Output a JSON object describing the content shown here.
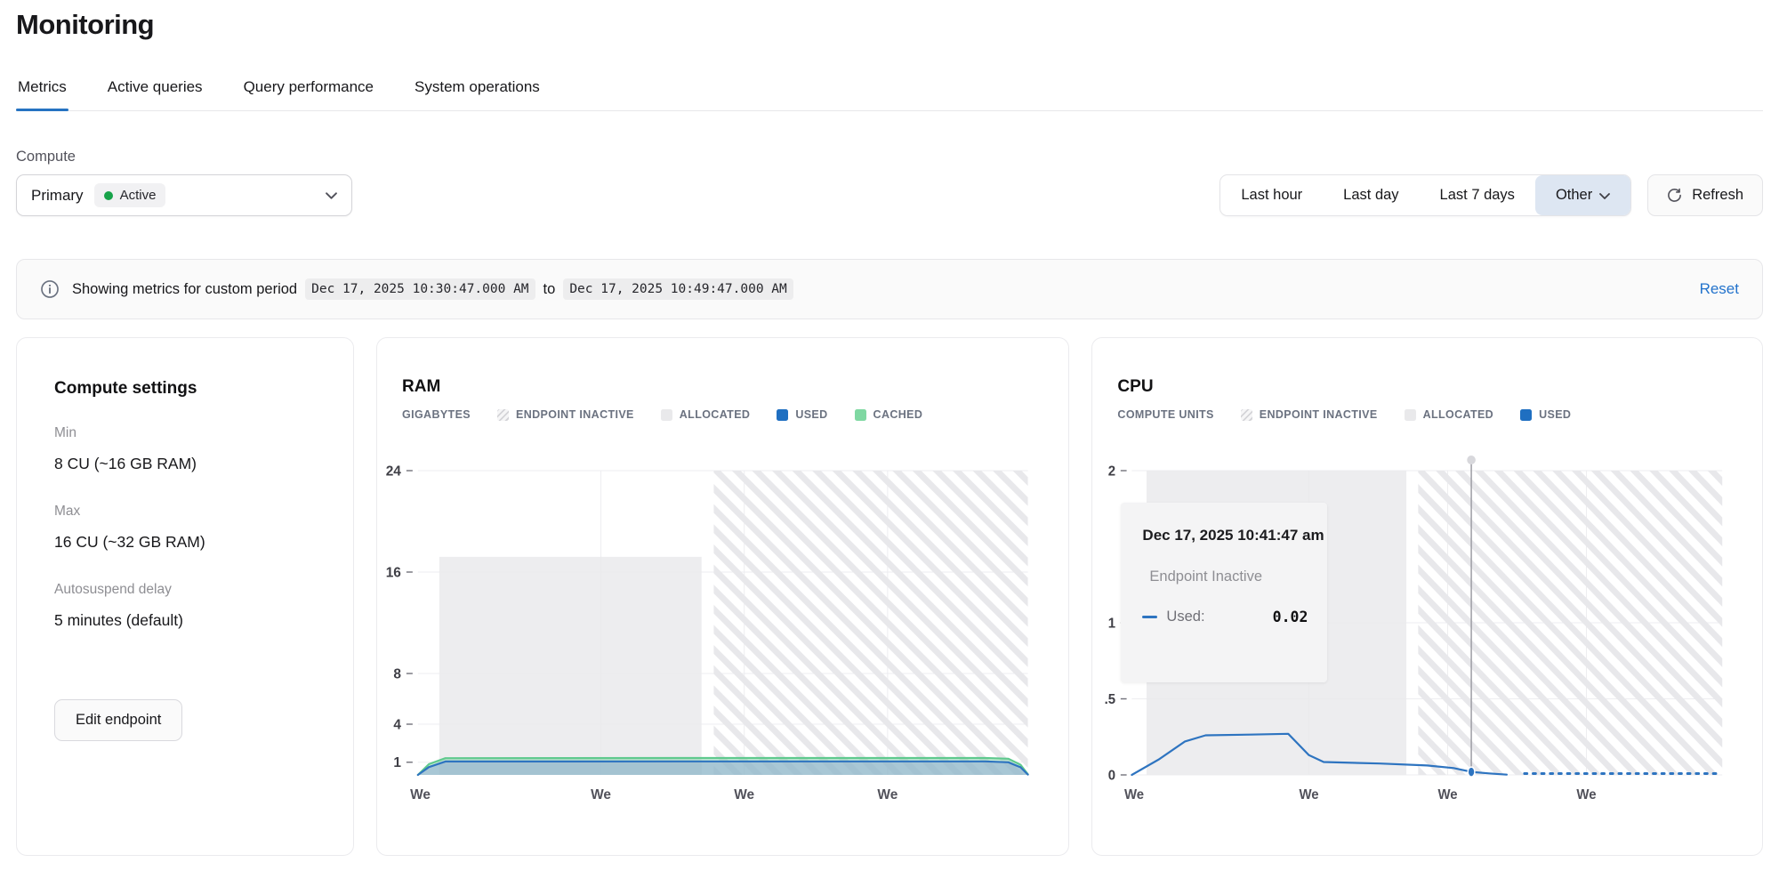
{
  "page": {
    "title": "Monitoring"
  },
  "tabs": [
    {
      "label": "Metrics",
      "active": true
    },
    {
      "label": "Active queries",
      "active": false
    },
    {
      "label": "Query performance",
      "active": false
    },
    {
      "label": "System operations",
      "active": false
    }
  ],
  "compute_selector": {
    "caption": "Compute",
    "value": "Primary",
    "status": "Active"
  },
  "time_range": {
    "options": [
      "Last hour",
      "Last day",
      "Last 7 days"
    ],
    "other_label": "Other",
    "selected": "Other",
    "refresh_label": "Refresh"
  },
  "banner": {
    "text": "Showing metrics for custom period",
    "from": "Dec 17, 2025 10:30:47.000 AM",
    "to_word": "to",
    "to": "Dec 17, 2025 10:49:47.000 AM",
    "reset_label": "Reset"
  },
  "compute_settings": {
    "title": "Compute settings",
    "fields": [
      {
        "label": "Min",
        "value": "8 CU (~16 GB RAM)"
      },
      {
        "label": "Max",
        "value": "16 CU (~32 GB RAM)"
      },
      {
        "label": "Autosuspend delay",
        "value": "5 minutes (default)"
      }
    ],
    "button": "Edit endpoint"
  },
  "colors": {
    "accent_blue": "#2673c2",
    "used_blue": "#2e74c0",
    "cached_green": "#5fc98e",
    "allocated_gray": "#e9e9eb",
    "active_green": "#17a34a",
    "selected_segment": "#dde6f2"
  },
  "chart_data": [
    {
      "id": "ram",
      "type": "area",
      "title": "RAM",
      "unit_label": "GIGABYTES",
      "legend": [
        {
          "label": "ENDPOINT INACTIVE",
          "swatch": "hatch"
        },
        {
          "label": "ALLOCATED",
          "swatch": "#e9e9eb"
        },
        {
          "label": "USED",
          "swatch": "#1f6fc1"
        },
        {
          "label": "CACHED",
          "swatch": "#7fd8a2"
        }
      ],
      "ylim": [
        0,
        24
      ],
      "yticks": [
        {
          "v": 24,
          "label": "24"
        },
        {
          "v": 16,
          "label": "16"
        },
        {
          "v": 8,
          "label": "8"
        },
        {
          "v": 4,
          "label": "4"
        },
        {
          "v": 1,
          "label": "1"
        }
      ],
      "xticks": [
        {
          "pos": 0.004,
          "label": "We"
        },
        {
          "pos": 0.3,
          "label": "We"
        },
        {
          "pos": 0.535,
          "label": "We"
        },
        {
          "pos": 0.77,
          "label": "We"
        }
      ],
      "allocated_region": {
        "x0": 0.035,
        "x1": 0.465,
        "value": 17.2
      },
      "inactive_region": {
        "x0": 0.485,
        "x1": 1.0
      },
      "series": [
        {
          "name": "Cached",
          "color": "#5fc98e",
          "fill": "rgba(133,216,166,0.45)",
          "points": [
            [
              0,
              0
            ],
            [
              0.018,
              0.85
            ],
            [
              0.045,
              1.32
            ],
            [
              0.5,
              1.33
            ],
            [
              0.93,
              1.33
            ],
            [
              0.968,
              1.28
            ],
            [
              0.988,
              0.8
            ],
            [
              1,
              0.05
            ]
          ]
        },
        {
          "name": "Used",
          "color": "#2e74c0",
          "fill": "rgba(146,174,212,0.6)",
          "points": [
            [
              0,
              0
            ],
            [
              0.018,
              0.62
            ],
            [
              0.045,
              1.06
            ],
            [
              0.5,
              1.07
            ],
            [
              0.93,
              1.07
            ],
            [
              0.968,
              1.0
            ],
            [
              0.988,
              0.6
            ],
            [
              1,
              0.03
            ]
          ]
        }
      ]
    },
    {
      "id": "cpu",
      "type": "line",
      "title": "CPU",
      "unit_label": "COMPUTE UNITS",
      "legend": [
        {
          "label": "ENDPOINT INACTIVE",
          "swatch": "hatch"
        },
        {
          "label": "ALLOCATED",
          "swatch": "#e9e9eb"
        },
        {
          "label": "USED",
          "swatch": "#1f6fc1"
        }
      ],
      "ylim": [
        0,
        2
      ],
      "yticks": [
        {
          "v": 2,
          "label": "2"
        },
        {
          "v": 1,
          "label": "1"
        },
        {
          "v": 0.5,
          "label": ".5"
        },
        {
          "v": 0,
          "label": "0"
        }
      ],
      "xticks": [
        {
          "pos": 0.004,
          "label": "We"
        },
        {
          "pos": 0.3,
          "label": "We"
        },
        {
          "pos": 0.535,
          "label": "We"
        },
        {
          "pos": 0.77,
          "label": "We"
        }
      ],
      "allocated_region": {
        "x0": 0.025,
        "x1": 0.465,
        "value": 2
      },
      "inactive_region": {
        "x0": 0.485,
        "x1": 1.0
      },
      "series": [
        {
          "name": "Used",
          "color": "#2e74c0",
          "points": [
            [
              0,
              0
            ],
            [
              0.045,
              0.1
            ],
            [
              0.09,
              0.22
            ],
            [
              0.125,
              0.26
            ],
            [
              0.2,
              0.265
            ],
            [
              0.265,
              0.27
            ],
            [
              0.3,
              0.13
            ],
            [
              0.325,
              0.085
            ],
            [
              0.42,
              0.075
            ],
            [
              0.5,
              0.062
            ],
            [
              0.545,
              0.045
            ],
            [
              0.575,
              0.02
            ],
            [
              0.605,
              0.01
            ],
            [
              0.635,
              0.002
            ]
          ]
        }
      ],
      "zero_dash": {
        "x0": 0.665,
        "x1": 0.995
      },
      "crosshair": {
        "x": 0.575,
        "value": 0.02
      },
      "tooltip": {
        "title": "Dec 17, 2025 10:41:47 am",
        "status": "Endpoint Inactive",
        "series_label": "Used:",
        "value": "0.02"
      }
    }
  ]
}
